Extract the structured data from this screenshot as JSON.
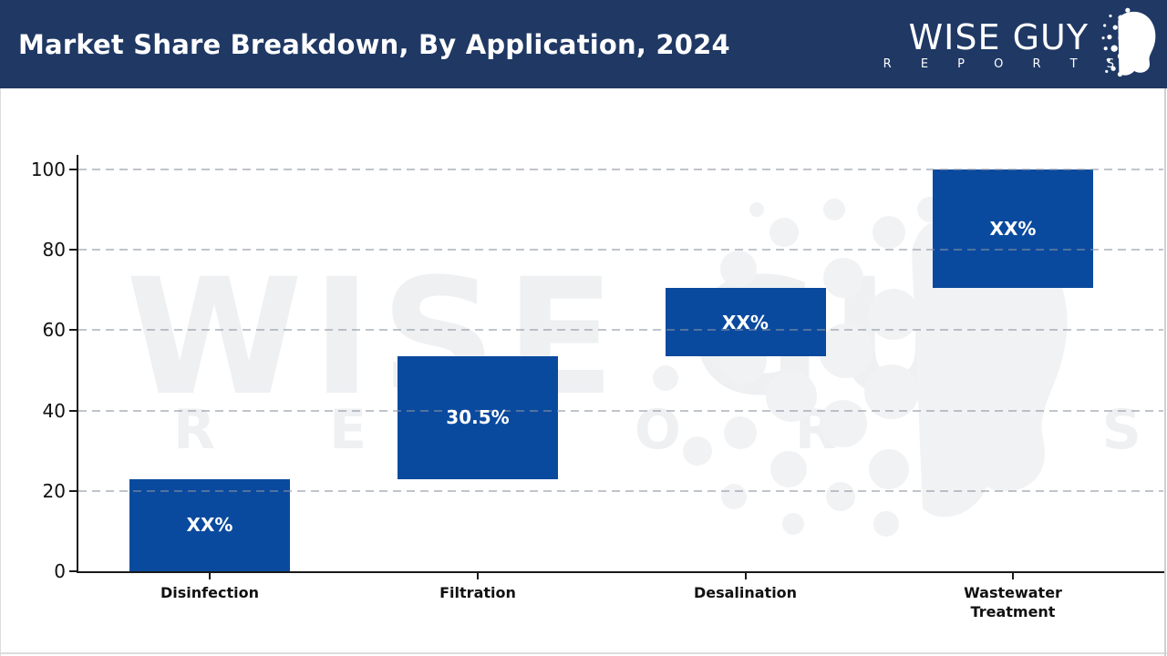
{
  "header": {
    "title": "Market Share Breakdown, By Application, 2024",
    "logo_line1": "WISE GUY",
    "logo_line2": "R E P O R T S"
  },
  "watermark": {
    "line1": "WISE GU",
    "line2": "R E P O R T S"
  },
  "chart_data": {
    "type": "bar",
    "subtype": "waterfall-floating-bars",
    "title": "Market Share Breakdown, By Application, 2024",
    "categories": [
      "Disinfection",
      "Filtration",
      "Desalination",
      "Wastewater Treatment"
    ],
    "series": [
      {
        "name": "Market share (%)",
        "starts": [
          0,
          23,
          53.5,
          70.5
        ],
        "ends": [
          23,
          53.5,
          70.5,
          100
        ]
      }
    ],
    "bar_labels": [
      "XX%",
      "30.5%",
      "XX%",
      "XX%"
    ],
    "ylim": [
      0,
      100
    ],
    "yticks": [
      0,
      20,
      40,
      60,
      80,
      100
    ],
    "xlabel": "",
    "ylabel": "",
    "legend": "none",
    "grid": "horizontal-dashed",
    "colors": {
      "bar": "#0a4a9e",
      "header_bg": "#1f3864",
      "grid": "#d6d9dd",
      "axis": "#1a1a1a",
      "bar_label_text": "#ffffff",
      "tick_text": "#111111",
      "watermark": "#eef0f2"
    }
  }
}
